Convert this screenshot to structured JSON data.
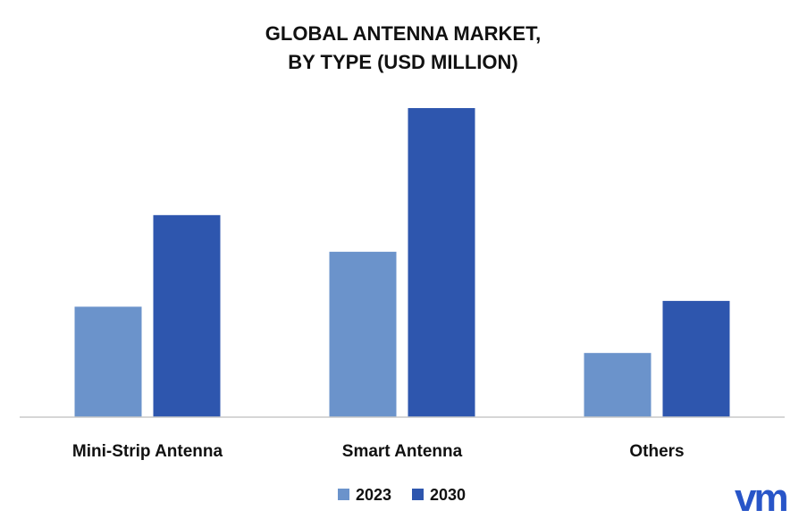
{
  "chart_data": {
    "type": "bar",
    "title_lines": [
      "GLOBAL ANTENNA MARKET,",
      "BY TYPE (USD MILLION)"
    ],
    "categories": [
      "Mini-Strip Antenna",
      "Smart Antenna",
      "Others"
    ],
    "series": [
      {
        "name": "2023",
        "values": [
          115,
          172,
          67
        ],
        "color": "#6b93cb"
      },
      {
        "name": "2030",
        "values": [
          210,
          321,
          121
        ],
        "color": "#2e56ae"
      }
    ],
    "ylim": [
      0,
      340
    ],
    "grid": false,
    "legend": "bottom"
  },
  "logo": {
    "text": "vm",
    "color": "#2855c8"
  }
}
